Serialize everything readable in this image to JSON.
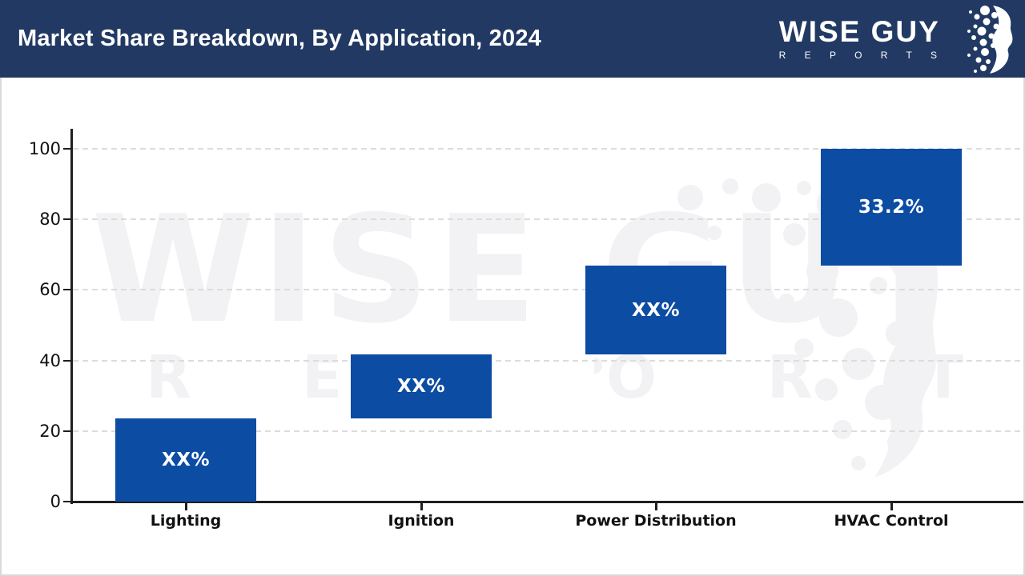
{
  "header": {
    "title": "Market Share Breakdown, By Application, 2024",
    "logo": {
      "primary": "WISE GUY",
      "secondary": "R E P O R T S"
    }
  },
  "watermark": {
    "primary": "WISE GUY",
    "secondary": "R E P O R T S"
  },
  "colors": {
    "header_bg": "#223A63",
    "bar": "#0C4CA3",
    "bar_label": "#FFFFFF",
    "grid": "#DCDCDC",
    "axis": "#1F1F1F",
    "watermark": "#F2F2F4"
  },
  "chart_data": {
    "type": "bar",
    "subtype": "floating_segment_waterfall",
    "title": "Market Share Breakdown, By Application, 2024",
    "categories": [
      "Lighting",
      "Ignition",
      "Power Distribution",
      "HVAC Control"
    ],
    "segments": [
      {
        "category": "Lighting",
        "start": 0,
        "end": 23.5,
        "share": null,
        "label": "XX%"
      },
      {
        "category": "Ignition",
        "start": 23.5,
        "end": 41.8,
        "share": null,
        "label": "XX%"
      },
      {
        "category": "Power Distribution",
        "start": 41.8,
        "end": 66.8,
        "share": null,
        "label": "XX%"
      },
      {
        "category": "HVAC Control",
        "start": 66.8,
        "end": 100,
        "share": 33.2,
        "label": "33.2%"
      }
    ],
    "yticks": [
      0,
      20,
      40,
      60,
      80,
      100
    ],
    "ylim": [
      0,
      106
    ],
    "xlabel": "",
    "ylabel": "",
    "grid": "horizontal-dashed",
    "legend": "none"
  }
}
